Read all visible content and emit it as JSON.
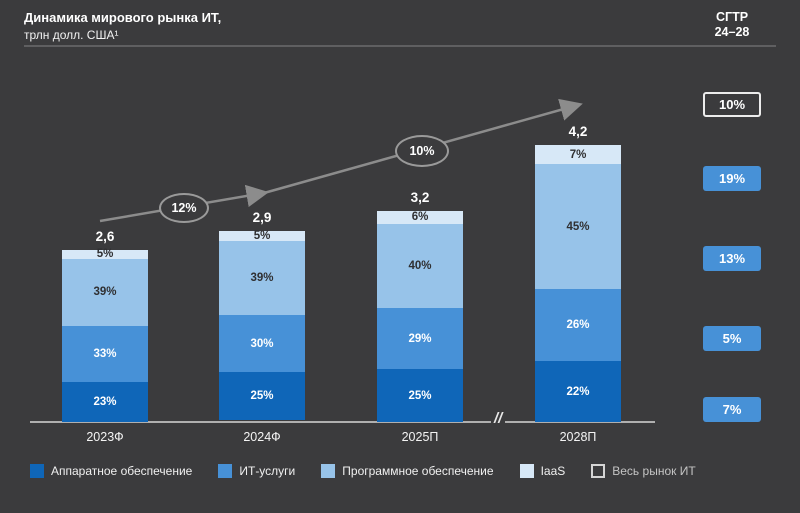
{
  "header": {
    "title_line1": "Динамика мирового рынка ИТ,",
    "title_line2": "трлн долл. США¹",
    "cagr_label_line1": "СГТР",
    "cagr_label_line2": "24–28"
  },
  "chart_data": {
    "type": "bar",
    "stacked": true,
    "title": "Динамика мирового рынка ИТ, трлн долл. США",
    "categories": [
      "2023Ф",
      "2024Ф",
      "2025П",
      "2028П"
    ],
    "totals": [
      2.6,
      2.9,
      3.2,
      4.2
    ],
    "total_labels": [
      "2,6",
      "2,9",
      "3,2",
      "4,2"
    ],
    "series": [
      {
        "name": "Аппаратное обеспечение",
        "color": "#0f66b8",
        "text_color": "#ffffff",
        "values_pct": [
          23,
          25,
          25,
          22
        ]
      },
      {
        "name": "ИТ-услуги",
        "color": "#4791d7",
        "text_color": "#ffffff",
        "values_pct": [
          33,
          30,
          29,
          26
        ]
      },
      {
        "name": "Программное обеспечение",
        "color": "#97c3e9",
        "text_color": "#2f2f31",
        "values_pct": [
          39,
          39,
          40,
          45
        ]
      },
      {
        "name": "IaaS",
        "color": "#d7e8f7",
        "text_color": "#2f2f31",
        "values_pct": [
          5,
          5,
          6,
          7
        ]
      }
    ],
    "growth_annotations": [
      "12%",
      "10%"
    ],
    "axis_break": "//",
    "ylim": [
      0,
      4.5
    ],
    "legend_position": "bottom"
  },
  "cagr_badges": {
    "total": "10%",
    "items": [
      "19%",
      "13%",
      "5%",
      "7%"
    ]
  },
  "legend": {
    "items": [
      {
        "label": "Аппаратное обеспечение",
        "color": "#0f66b8",
        "type": "filled",
        "muted": false
      },
      {
        "label": "ИТ-услуги",
        "color": "#4791d7",
        "type": "filled",
        "muted": false
      },
      {
        "label": "Программное обеспечение",
        "color": "#97c3e9",
        "type": "filled",
        "muted": false
      },
      {
        "label": "IaaS",
        "color": "#d7e8f7",
        "type": "filled",
        "muted": false
      },
      {
        "label": "Весь рынок ИТ",
        "type": "outlined",
        "muted": true
      }
    ]
  }
}
